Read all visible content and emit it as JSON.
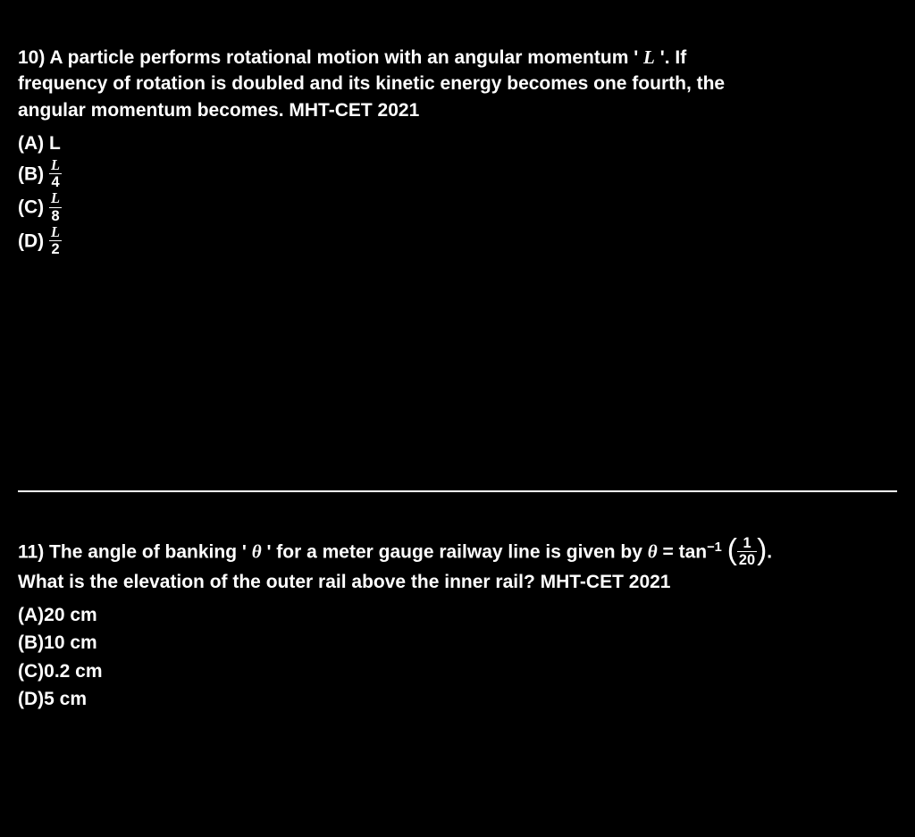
{
  "q10": {
    "number": "10)",
    "text_line1": " A particle performs rotational motion with an angular momentum ' ",
    "var_L": "L",
    "text_line1_end": " '. If ",
    "text_line2": "frequency of rotation is doubled and its kinetic energy becomes one fourth, the ",
    "text_line3": "angular momentum becomes. MHT-CET 2021",
    "options": {
      "A": {
        "label": "(A) ",
        "value": "L"
      },
      "B": {
        "label": "(B) ",
        "num": "L",
        "den": "4"
      },
      "C": {
        "label": "(C) ",
        "num": "L",
        "den": "8"
      },
      "D": {
        "label": "(D) ",
        "num": "L",
        "den": "2"
      }
    }
  },
  "q11": {
    "number": "11)",
    "text_part1": " The angle of banking ' ",
    "theta1": "θ",
    "text_part2": " ' for a meter gauge railway line is given by ",
    "theta2": "θ",
    "eq": " = tan",
    "exp": "−1",
    "frac_num": "1",
    "frac_den": "20",
    "period": ".",
    "text_line2": "What is the elevation of the outer rail above the inner rail? MHT-CET 2021",
    "options": {
      "A": {
        "label": "(A)",
        "value": "20 cm"
      },
      "B": {
        "label": "(B)",
        "value": "10 cm"
      },
      "C": {
        "label": "(C)",
        "value": "0.2 cm"
      },
      "D": {
        "label": "(D)",
        "value": "5 cm"
      }
    }
  },
  "colors": {
    "background": "#000000",
    "text": "#ffffff"
  }
}
